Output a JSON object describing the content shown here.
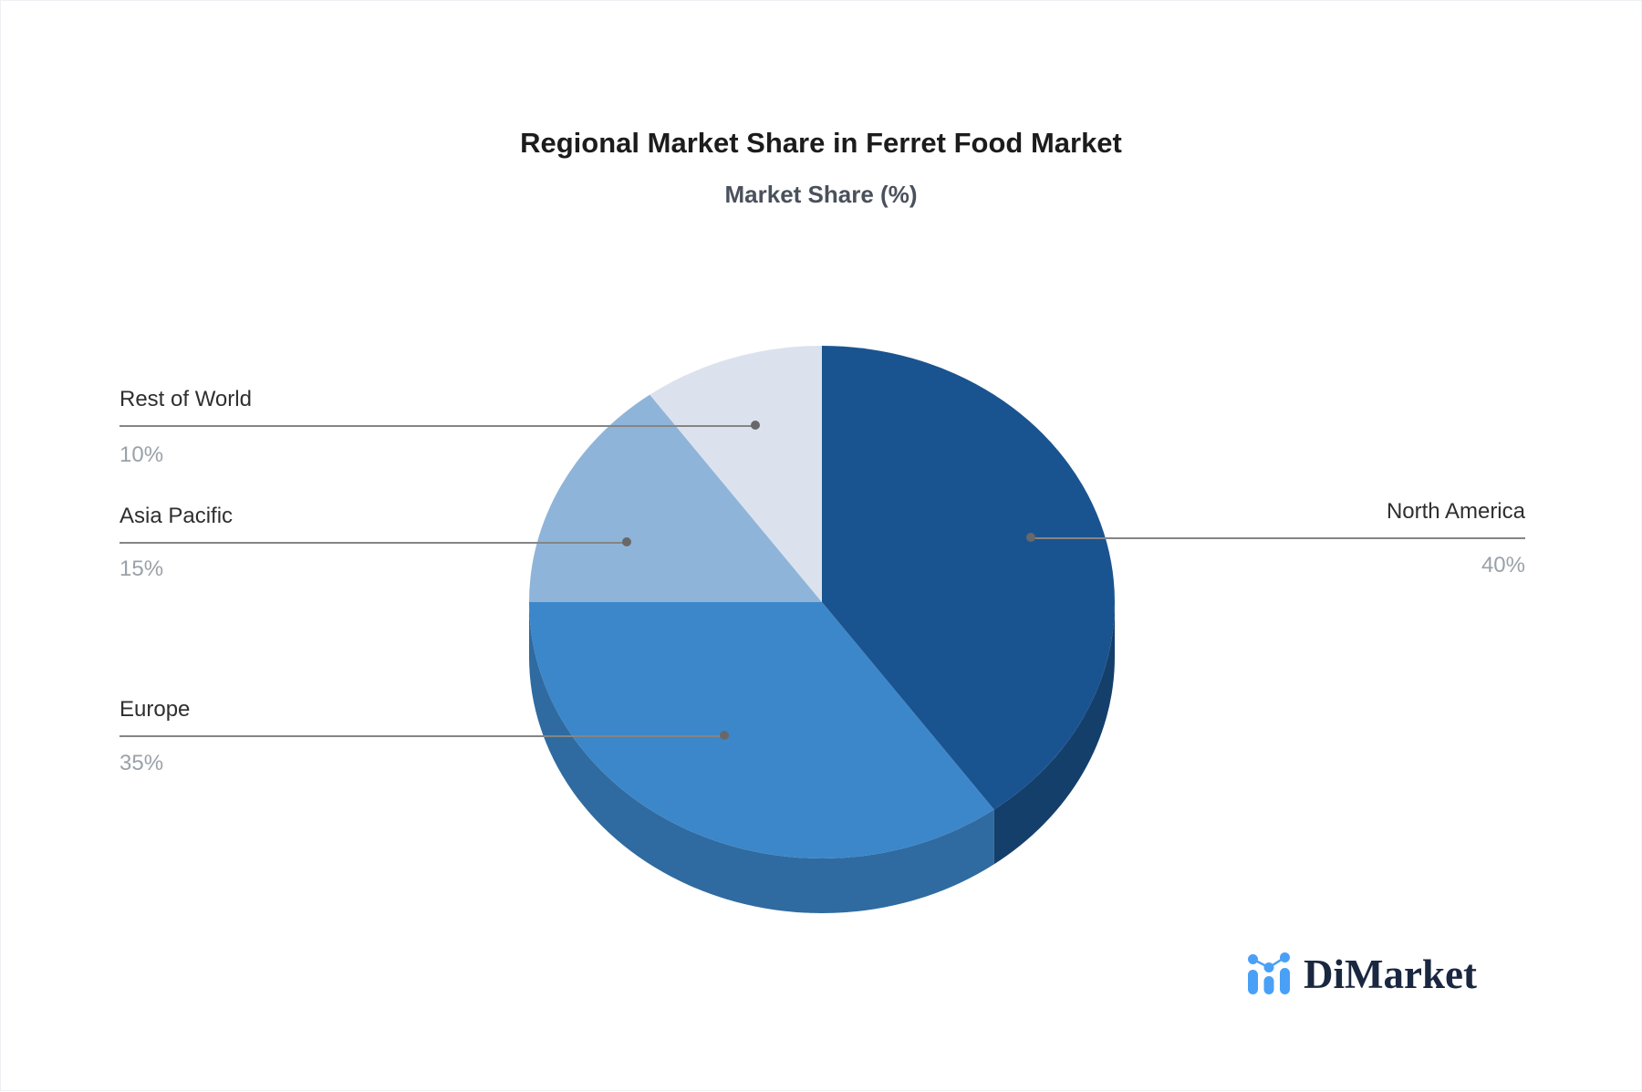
{
  "title": "Regional Market Share in Ferret Food Market",
  "subtitle": "Market Share (%)",
  "chart_data": {
    "type": "pie",
    "title": "Regional Market Share in Ferret Food Market",
    "subtitle": "Market Share (%)",
    "unit": "%",
    "categories": [
      "North America",
      "Europe",
      "Asia Pacific",
      "Rest of World"
    ],
    "values": [
      40,
      35,
      15,
      10
    ],
    "start_angle": "12-o-clock",
    "direction": "clockwise",
    "effect": "3d-depth",
    "legend": "none (leader-line labels)",
    "slice_colors": [
      "#1A5490",
      "#3C87C9",
      "#8FB4D9",
      "#DBE2EE"
    ],
    "side_colors": [
      "#153F6B",
      "#2F6BA0",
      "#7FA3C8",
      "#C5CFDF"
    ],
    "labels": [
      {
        "name": "North America",
        "pct": "40%"
      },
      {
        "name": "Europe",
        "pct": "35%"
      },
      {
        "name": "Asia Pacific",
        "pct": "15%"
      },
      {
        "name": "Rest of World",
        "pct": "10%"
      }
    ]
  },
  "logo": {
    "text": "DiMarket"
  },
  "colors": {
    "background": "#ffffff",
    "title": "#1c1c1c",
    "subtitle": "#4a515c",
    "label": "#2f2f2f",
    "percent": "#9aa1a8",
    "leader_line": "#858585",
    "leader_dot": "#686868",
    "logo_text": "#1a2740",
    "logo_icon": "#4aa0f6"
  }
}
